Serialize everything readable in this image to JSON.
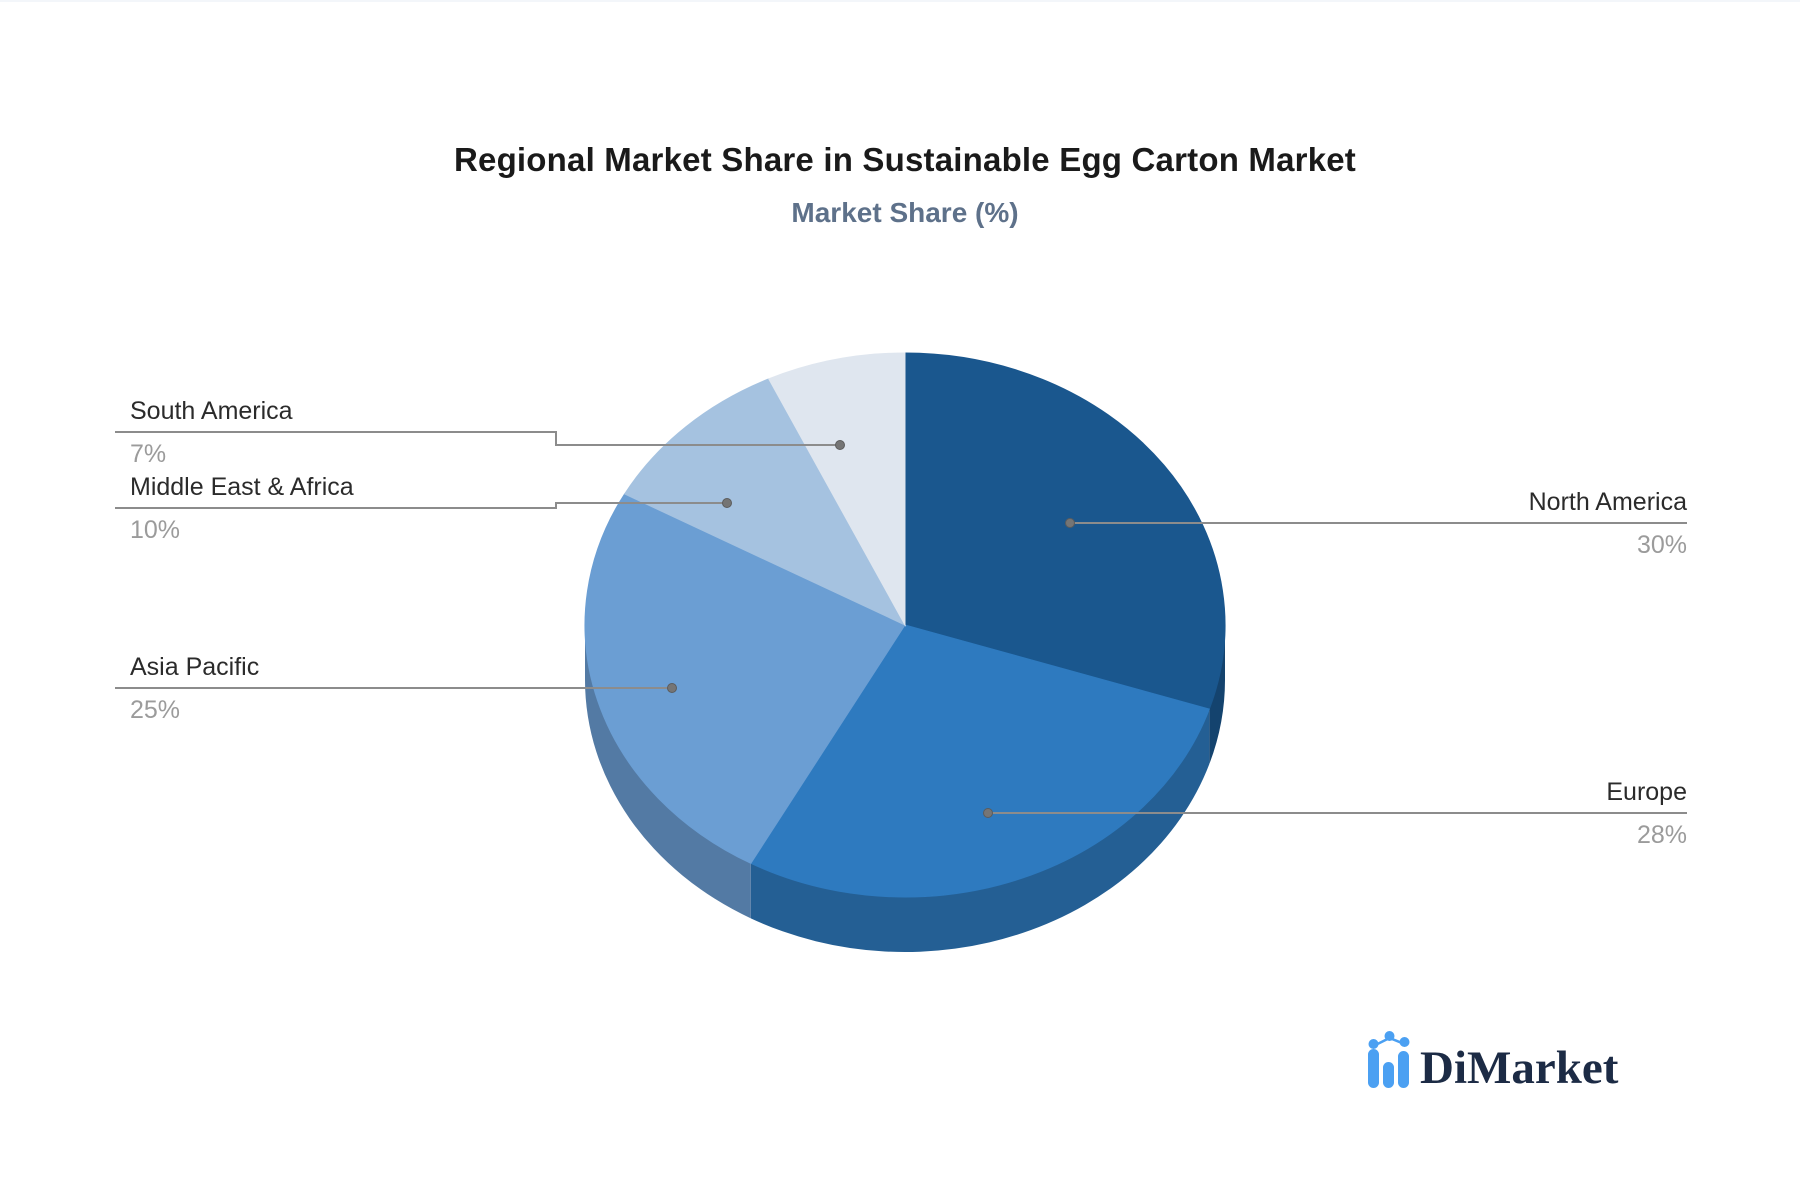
{
  "header": {
    "title": "Regional Market Share in Sustainable Egg Carton Market",
    "subtitle": "Market Share (%)"
  },
  "logo": {
    "name": "DiMarket"
  },
  "colors": {
    "title": "#1a1a1a",
    "subtitle": "#5e718a",
    "label_text": "#2b2b2b",
    "percent_text": "#9b9b9b",
    "leader_line": "#8c8c8c",
    "leader_dot": "#757575",
    "logo_text": "#1c2b45",
    "logo_icon_blue": "#4ba0f2"
  },
  "chart_data": {
    "type": "pie",
    "style": "3d",
    "title": "Regional Market Share in Sustainable Egg Carton Market",
    "subtitle": "Market Share (%)",
    "unit": "%",
    "direction": "clockwise",
    "start_angle_deg": 0,
    "legend_position": "none",
    "segments": [
      {
        "label": "North America",
        "value": 30,
        "display": "30%",
        "color": "#1a578e"
      },
      {
        "label": "Europe",
        "value": 28,
        "display": "28%",
        "color": "#2e7abf"
      },
      {
        "label": "Asia Pacific",
        "value": 25,
        "display": "25%",
        "color": "#6b9ed3"
      },
      {
        "label": "Middle East & Africa",
        "value": 10,
        "display": "10%",
        "color": "#a5c2e0"
      },
      {
        "label": "South America",
        "value": 7,
        "display": "7%",
        "color": "#dfe6ef"
      }
    ]
  }
}
